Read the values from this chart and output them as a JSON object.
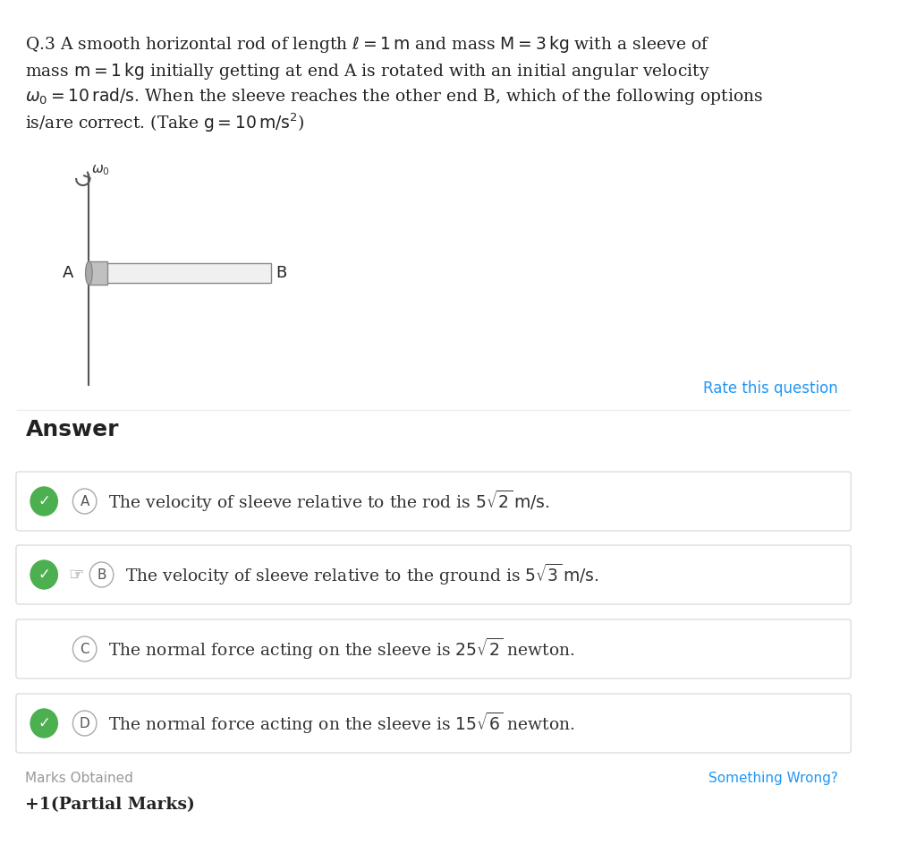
{
  "bg_color": "#ffffff",
  "question_text_line1": "Q.3 A smooth horizontal rod of length $\\ell = 1\\,\\mathrm{m}$ and mass $\\mathrm{M} = 3\\,\\mathrm{kg}$ with a sleeve of",
  "question_text_line2": "mass $\\mathrm{m} = 1\\,\\mathrm{kg}$ initially getting at end A is rotated with an initial angular velocity",
  "question_text_line3": "$\\omega_0 = 10\\,\\mathrm{rad/s}$. When the sleeve reaches the other end B, which of the following options",
  "question_text_line4": "is/are correct. (Take $\\mathrm{g} = 10\\,\\mathrm{m/s^2}$)",
  "answer_label": "Answer",
  "options": [
    {
      "letter": "A",
      "text": "The velocity of sleeve relative to the rod is $5\\sqrt{2}\\,\\mathrm{m/s}$.",
      "correct": true,
      "has_hand_icon": false
    },
    {
      "letter": "B",
      "text": "The velocity of sleeve relative to the ground is $5\\sqrt{3}\\,\\mathrm{m/s}$.",
      "correct": true,
      "has_hand_icon": true
    },
    {
      "letter": "C",
      "text": "The normal force acting on the sleeve is $25\\sqrt{2}$ newton.",
      "correct": false,
      "has_hand_icon": false
    },
    {
      "letter": "D",
      "text": "The normal force acting on the sleeve is $15\\sqrt{6}$ newton.",
      "correct": true,
      "has_hand_icon": false
    }
  ],
  "rate_text": "Rate this question",
  "rate_color": "#2196F3",
  "marks_label": "Marks Obtained",
  "marks_color": "#999999",
  "marks_value": "+1(Partial Marks)",
  "something_wrong": "Something Wrong?",
  "something_wrong_color": "#2196F3",
  "green_check": "#4CAF50",
  "option_border": "#dddddd",
  "text_color": "#222222",
  "option_text_color": "#333333"
}
